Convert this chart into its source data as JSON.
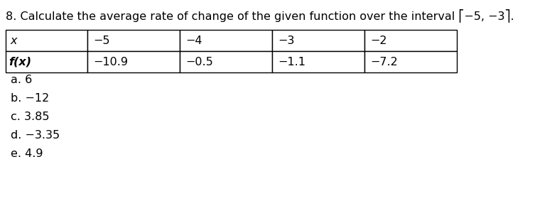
{
  "question_text": "8. Calculate the average rate of change of the given function over the interval ⎡−5, −3⎤.",
  "table": {
    "col0_header": "x",
    "col0_row1": "f(x)",
    "headers": [
      "−5",
      "−4",
      "−3",
      "−2"
    ],
    "values": [
      "−10.9",
      "−0.5",
      "−1.1",
      "−7.2"
    ]
  },
  "choices": [
    "a. 6",
    "b. −12",
    "c. 3.85",
    "d. −3.35",
    "e. 4.9"
  ],
  "background_color": "#ffffff",
  "text_color": "#000000"
}
